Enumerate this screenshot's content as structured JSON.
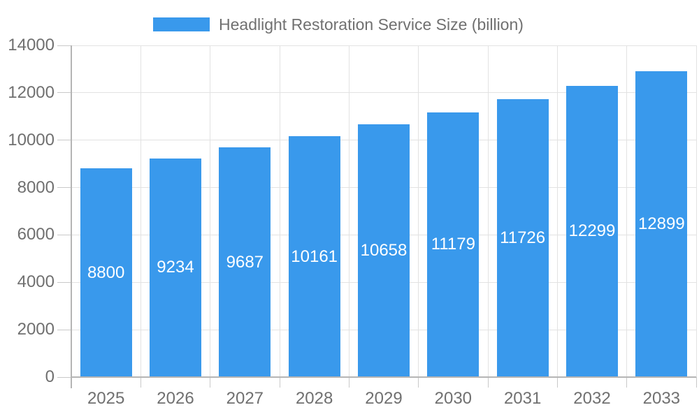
{
  "window": {
    "background": "#ffffff"
  },
  "legend": {
    "label": "Headlight Restoration Service Size (billion)",
    "position": "top"
  },
  "colors": {
    "bar": "#3999EC",
    "grid": "#E2E2E2",
    "tick": "#C9C9C9",
    "axis": "#B5B5B5",
    "text": "#707070",
    "bar_label": "#FFFFFF",
    "background": "#FFFFFF"
  },
  "chart_data": {
    "type": "bar",
    "title": "",
    "xlabel": "",
    "ylabel": "",
    "categories": [
      "2025",
      "2026",
      "2027",
      "2028",
      "2029",
      "2030",
      "2031",
      "2032",
      "2033"
    ],
    "series": [
      {
        "name": "Headlight Restoration Service Size (billion)",
        "values": [
          8800,
          9234,
          9687,
          10161,
          10658,
          11179,
          11726,
          12299,
          12899
        ]
      }
    ],
    "ylim": [
      0,
      14000
    ],
    "yticks": [
      0,
      2000,
      4000,
      6000,
      8000,
      10000,
      12000,
      14000
    ],
    "grid": true,
    "legend_position": "top",
    "bar_value_labels": "inside-center"
  }
}
